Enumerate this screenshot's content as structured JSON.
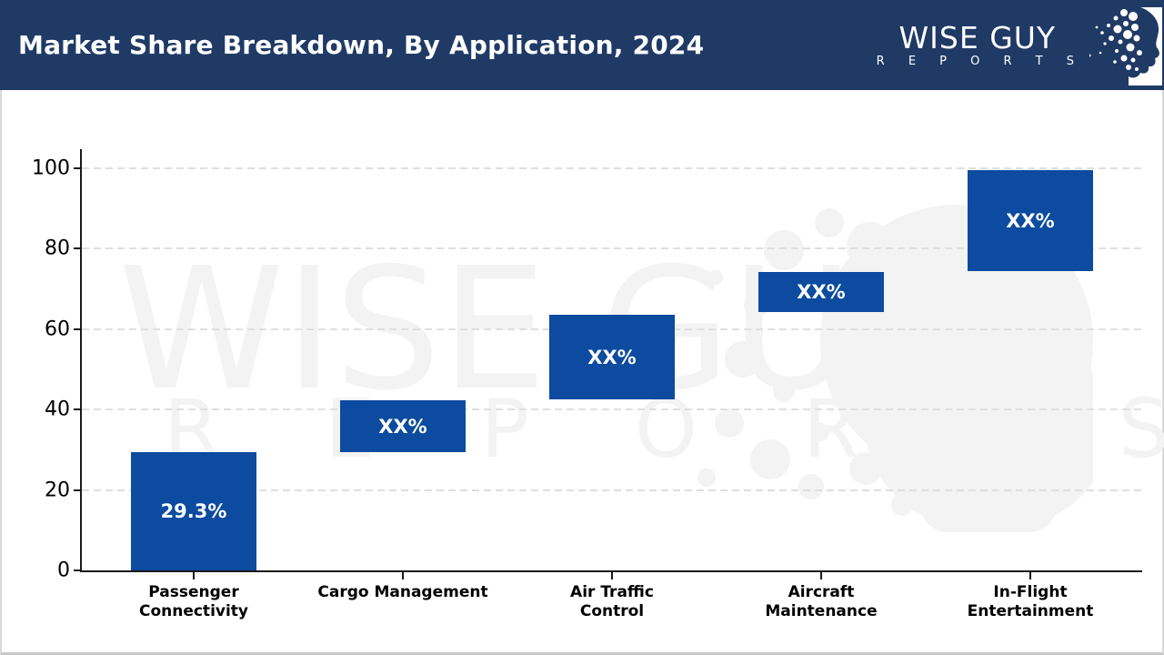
{
  "header": {
    "title": "Market Share Breakdown, By Application, 2024",
    "logo": {
      "line1": "WISE GUY",
      "line2": "R E P O R T S"
    }
  },
  "watermark": {
    "line1": "WISE GUY",
    "line2": "R E P O R T S"
  },
  "chart_data": {
    "type": "bar",
    "subtype": "waterfall",
    "title": "Market Share Breakdown, By Application, 2024",
    "categories": [
      "Passenger Connectivity",
      "Cargo Management",
      "Air Traffic Control",
      "Aircraft Maintenance",
      "In-Flight Entertainment"
    ],
    "category_lines": [
      [
        "Passenger",
        "Connectivity"
      ],
      [
        "Cargo Management"
      ],
      [
        "Air Traffic",
        "Control"
      ],
      [
        "Aircraft",
        "Maintenance"
      ],
      [
        "In-Flight",
        "Entertainment"
      ]
    ],
    "segments": [
      {
        "category": "Passenger Connectivity",
        "start": 0,
        "end": 29.3,
        "label": "29.3%"
      },
      {
        "category": "Cargo Management",
        "start": 29.3,
        "end": 42.3,
        "label": "XX%"
      },
      {
        "category": "Air Traffic Control",
        "start": 42.5,
        "end": 63.6,
        "label": "XX%"
      },
      {
        "category": "Aircraft Maintenance",
        "start": 64.3,
        "end": 74.2,
        "label": "XX%"
      },
      {
        "category": "In-Flight Entertainment",
        "start": 74.4,
        "end": 99.5,
        "label": "XX%"
      }
    ],
    "xlabel": "",
    "ylabel": "",
    "yticks": [
      0,
      20,
      40,
      60,
      80,
      100
    ],
    "ylim": [
      0,
      104.7
    ],
    "grid": "horizontal-dashed",
    "legend": "none"
  },
  "colors": {
    "header_bg": "#203a66",
    "bar": "#0c4b9f",
    "bar_label": "#ffffff",
    "watermark": "#f3f3f3",
    "grid": "#dfdfdf",
    "axis": "#1a1a1a",
    "title_text": "#ffffff"
  }
}
